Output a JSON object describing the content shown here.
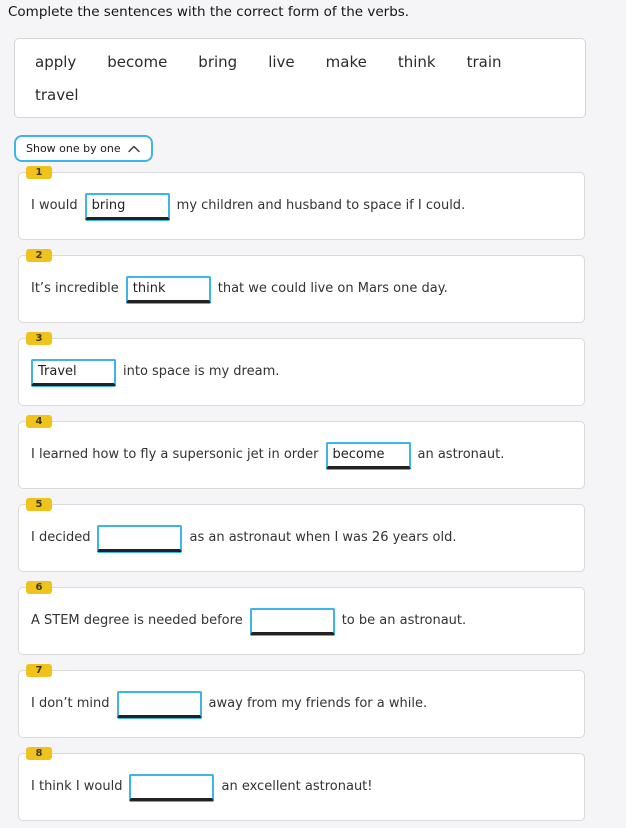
{
  "title": "Complete the sentences with the correct form of the verbs.",
  "word_bank": {
    "words": [
      "apply",
      "become",
      "bring",
      "live",
      "make",
      "think",
      "train",
      "travel"
    ]
  },
  "toolbar": {
    "show_one_by_one_label": "Show one by one",
    "chevron_icon": "chevron-up"
  },
  "colors": {
    "accent_cyan": "#3db5e6",
    "badge_yellow": "#f0c31c",
    "input_underline": "#222222",
    "card_border": "#d9d9d9",
    "page_background": "#f5f5f7"
  },
  "items": [
    {
      "number": "1",
      "pre": "I would",
      "input_value": "bring",
      "post": "my children and husband to space if I could."
    },
    {
      "number": "2",
      "pre": "It’s incredible",
      "input_value": "think",
      "post": "that we could live on Mars one day."
    },
    {
      "number": "3",
      "pre": "",
      "input_value": "Travel",
      "post": "into space is my dream."
    },
    {
      "number": "4",
      "pre": "I learned how to fly a supersonic jet in order",
      "input_value": "become",
      "post": "an astronaut."
    },
    {
      "number": "5",
      "pre": "I decided",
      "input_value": "",
      "post": "as an astronaut when I was 26 years old."
    },
    {
      "number": "6",
      "pre": "A STEM degree is needed before",
      "input_value": "",
      "post": "to be an astronaut."
    },
    {
      "number": "7",
      "pre": "I don’t mind",
      "input_value": "",
      "post": "away from my friends for a while."
    },
    {
      "number": "8",
      "pre": "I think I would",
      "input_value": "",
      "post": "an excellent astronaut!"
    }
  ]
}
